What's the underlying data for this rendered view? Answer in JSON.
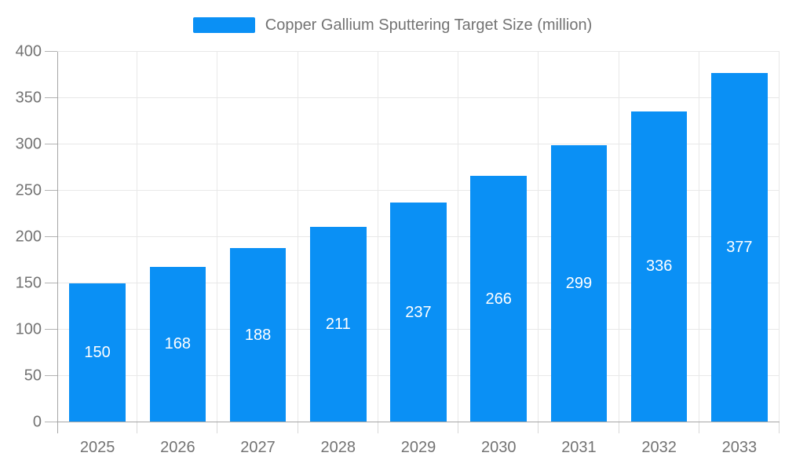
{
  "legend": {
    "items": [
      {
        "label": "Copper Gallium Sputtering Target Size (million)",
        "color": "#0a90f5"
      }
    ]
  },
  "chart_data": {
    "type": "bar",
    "title": "Copper Gallium Sputtering Target Size (million)",
    "categories": [
      "2025",
      "2026",
      "2027",
      "2028",
      "2029",
      "2030",
      "2031",
      "2032",
      "2033"
    ],
    "values": [
      150,
      168,
      188,
      211,
      237,
      266,
      299,
      336,
      377
    ],
    "xlabel": "",
    "ylabel": "",
    "ylim": [
      0,
      400
    ],
    "ytick_interval": 50,
    "grid": true,
    "legend_position": "top-center",
    "value_label_position": "inside-center"
  },
  "colors": {
    "bar": "#0a90f5",
    "grid_line": "#e8e8e8",
    "axis_line": "#a6a6a6",
    "y_tick": "#b3b3b3",
    "x_tick": "#d8d8d8",
    "axis_text": "#737373",
    "legend_text": "#737373",
    "value_label": "#ffffff",
    "background": "#ffffff"
  }
}
